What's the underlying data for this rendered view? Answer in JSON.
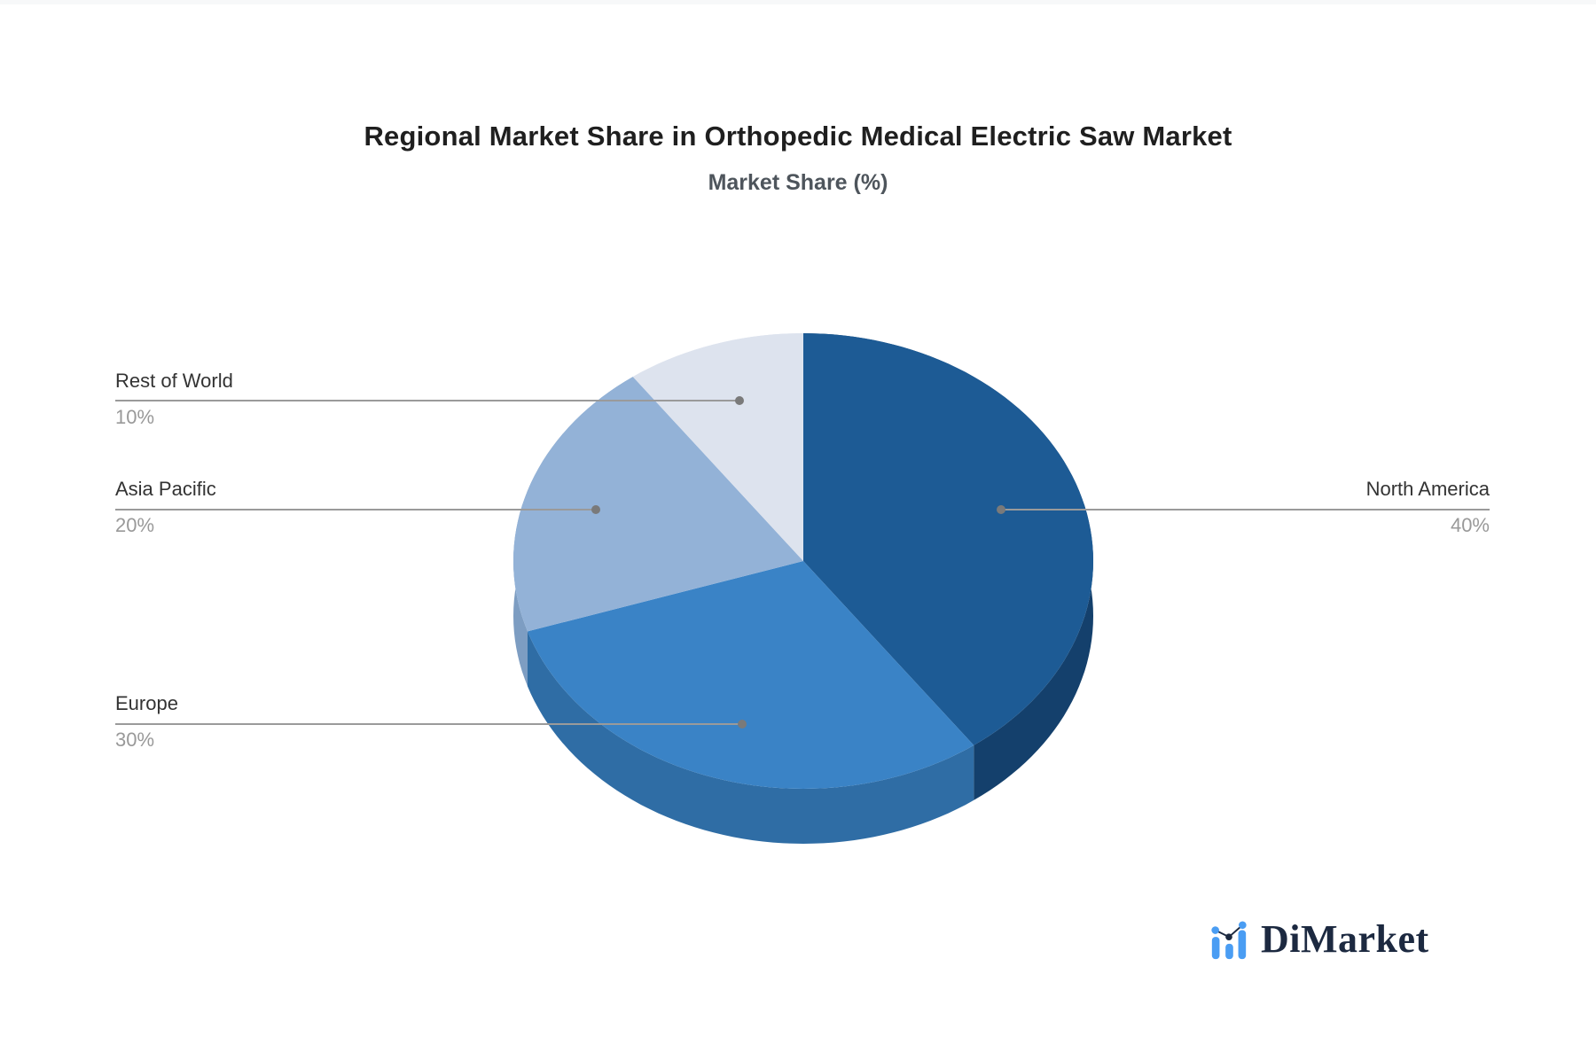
{
  "page": {
    "title": "Regional Market Share in Orthopedic Medical Electric Saw Market",
    "subtitle": "Market Share (%)"
  },
  "chart_data": {
    "type": "pie",
    "style": "3d",
    "title": "Regional Market Share in Orthopedic Medical Electric Saw Market",
    "subtitle": "Market Share (%)",
    "unit": "%",
    "start_angle_deg": 0,
    "direction": "clockwise",
    "legend_position": "callout-labels",
    "slices": [
      {
        "label": "North America",
        "value": 40,
        "display": "40%",
        "color": "#1d5b95",
        "side_color": "#14406c",
        "label_side": "right"
      },
      {
        "label": "Europe",
        "value": 30,
        "display": "30%",
        "color": "#3a83c6",
        "side_color": "#2f6da5",
        "label_side": "left"
      },
      {
        "label": "Asia Pacific",
        "value": 20,
        "display": "20%",
        "color": "#93b2d7",
        "side_color": "#7d9dc2",
        "label_side": "left"
      },
      {
        "label": "Rest of World",
        "value": 10,
        "display": "10%",
        "color": "#dde3ee",
        "label_side": "left"
      }
    ]
  },
  "callouts": {
    "line_color": "#9a9a9a",
    "dot_color": "#7a7a7a",
    "name_color": "#333333",
    "value_color": "#999999"
  },
  "brand": {
    "name": "DiMarket",
    "logo_icon": "bar-line-chart-icon",
    "bar_color": "#4a9df3",
    "text_color": "#1c2940"
  }
}
